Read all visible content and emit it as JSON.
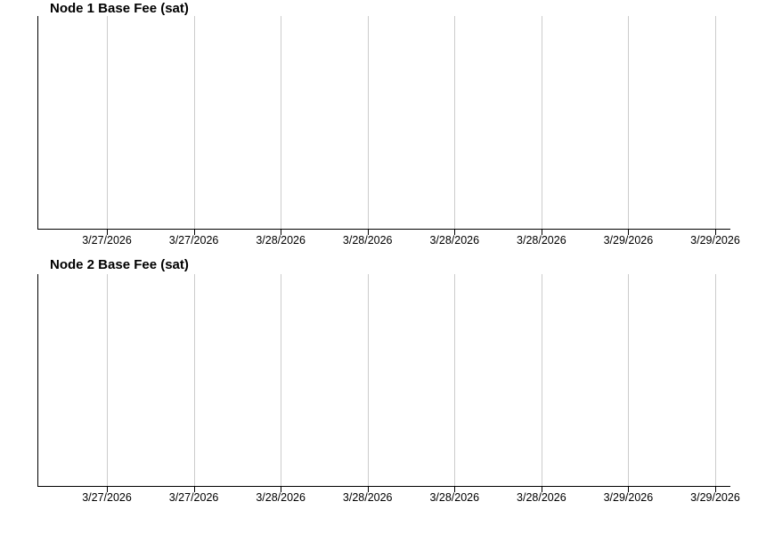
{
  "window": {
    "background": "#ffffff"
  },
  "colors": {
    "axis": "#000000",
    "gridline": "#cccccc",
    "title_text": "#000000",
    "tick_label_text": "#000000"
  },
  "charts": [
    {
      "title": "Node 1 Base Fee (sat)",
      "x_tick_labels": [
        "3/27/2026",
        "3/27/2026",
        "3/28/2026",
        "3/28/2026",
        "3/28/2026",
        "3/28/2026",
        "3/29/2026",
        "3/29/2026"
      ]
    },
    {
      "title": "Node 2 Base Fee (sat)",
      "x_tick_labels": [
        "3/27/2026",
        "3/27/2026",
        "3/28/2026",
        "3/28/2026",
        "3/28/2026",
        "3/28/2026",
        "3/29/2026",
        "3/29/2026"
      ]
    }
  ],
  "chart_data": [
    {
      "type": "line",
      "title": "Node 1 Base Fee (sat)",
      "x_tick_labels": [
        "3/27/2026",
        "3/27/2026",
        "3/28/2026",
        "3/28/2026",
        "3/28/2026",
        "3/28/2026",
        "3/29/2026",
        "3/29/2026"
      ],
      "series": [],
      "y_tick_labels": [],
      "grid": "vertical-only",
      "legend": "none"
    },
    {
      "type": "line",
      "title": "Node 2 Base Fee (sat)",
      "x_tick_labels": [
        "3/27/2026",
        "3/27/2026",
        "3/28/2026",
        "3/28/2026",
        "3/28/2026",
        "3/28/2026",
        "3/29/2026",
        "3/29/2026"
      ],
      "series": [],
      "y_tick_labels": [],
      "grid": "vertical-only",
      "legend": "none"
    }
  ]
}
